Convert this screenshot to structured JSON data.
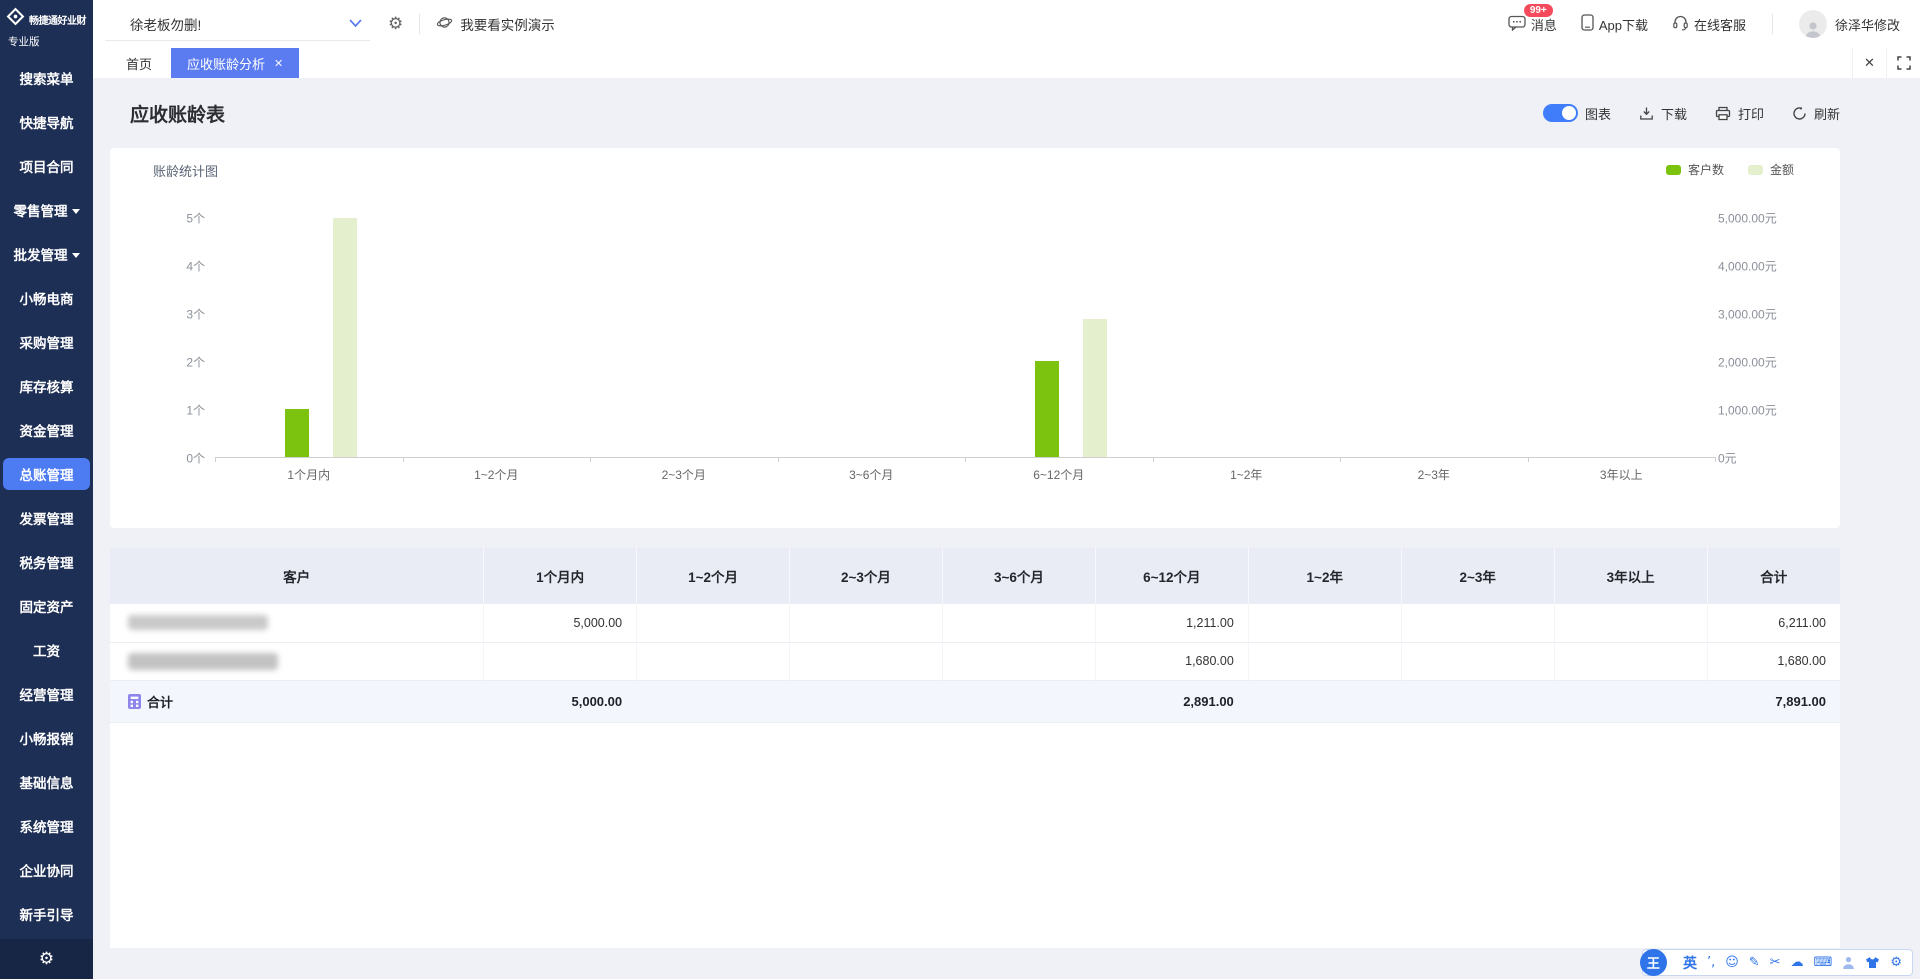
{
  "brand": {
    "logo_icon": "chanjet-emblem-icon",
    "name": "畅捷通好业财",
    "edition": "专业版"
  },
  "sidebar": {
    "items": [
      {
        "label": "搜索菜单"
      },
      {
        "label": "快捷导航"
      },
      {
        "label": "项目合同"
      },
      {
        "label": "零售管理",
        "caret": true
      },
      {
        "label": "批发管理",
        "caret": true
      },
      {
        "label": "小畅电商"
      },
      {
        "label": "采购管理"
      },
      {
        "label": "库存核算"
      },
      {
        "label": "资金管理"
      },
      {
        "label": "总账管理",
        "active": true
      },
      {
        "label": "发票管理"
      },
      {
        "label": "税务管理"
      },
      {
        "label": "固定资产"
      },
      {
        "label": "工资"
      },
      {
        "label": "经营管理"
      },
      {
        "label": "小畅报销"
      },
      {
        "label": "基础信息"
      },
      {
        "label": "系统管理"
      },
      {
        "label": "企业协同"
      },
      {
        "label": "新手引导"
      }
    ],
    "footer_icon": "gear-icon"
  },
  "topbar": {
    "company_selector": {
      "value": "徐老板勿删!",
      "chevron_icon": "chevron-down-icon"
    },
    "settings_icon": "gear-icon",
    "demo_link": {
      "icon": "planet-icon",
      "label": "我要看实例演示"
    },
    "messages": {
      "icon": "chat-bubble-icon",
      "label": "消息",
      "badge": "99+"
    },
    "app_download": {
      "icon": "phone-icon",
      "label": "App下载"
    },
    "support": {
      "icon": "headset-icon",
      "label": "在线客服"
    },
    "user": {
      "avatar_icon": "person-icon",
      "name": "徐泽华修改"
    }
  },
  "tabs": [
    {
      "label": "首页",
      "active": false
    },
    {
      "label": "应收账龄分析",
      "active": true,
      "closable": true
    }
  ],
  "page": {
    "title": "应收账龄表",
    "toolbar": {
      "chart_toggle_label": "图表",
      "toggle_on": true,
      "download_label": "下载",
      "print_label": "打印",
      "refresh_label": "刷新"
    }
  },
  "chart_data": {
    "type": "bar",
    "title": "账龄统计图",
    "categories": [
      "1个月内",
      "1~2个月",
      "2~3个月",
      "3~6个月",
      "6~12个月",
      "1~2年",
      "2~3年",
      "3年以上"
    ],
    "series": [
      {
        "name": "客户数",
        "axis": "left",
        "color": "#7bc30e",
        "values": [
          1,
          0,
          0,
          0,
          2,
          0,
          0,
          0
        ]
      },
      {
        "name": "金额",
        "axis": "right",
        "color": "#e4f0cd",
        "values": [
          5000,
          0,
          0,
          0,
          2891,
          0,
          0,
          0
        ]
      }
    ],
    "left_axis": {
      "unit": "个",
      "max": 5,
      "ticks": [
        "5个",
        "4个",
        "3个",
        "2个",
        "1个",
        "0个"
      ]
    },
    "right_axis": {
      "unit": "元",
      "max": 5000,
      "ticks": [
        "5,000.00元",
        "4,000.00元",
        "3,000.00元",
        "2,000.00元",
        "1,000.00元",
        "0元"
      ]
    },
    "legend_position": "top-right",
    "grid": false
  },
  "table": {
    "headers": [
      "客户",
      "1个月内",
      "1~2个月",
      "2~3个月",
      "3~6个月",
      "6~12个月",
      "1~2年",
      "2~3年",
      "3年以上",
      "合计"
    ],
    "rows": [
      {
        "customer_redacted": true,
        "values": [
          "5,000.00",
          "",
          "",
          "",
          "1,211.00",
          "",
          "",
          "",
          "6,211.00"
        ]
      },
      {
        "customer_redacted": true,
        "values": [
          "",
          "",
          "",
          "",
          "1,680.00",
          "",
          "",
          "",
          "1,680.00"
        ]
      }
    ],
    "total": {
      "icon": "calculator-icon",
      "label": "合计",
      "values": [
        "5,000.00",
        "",
        "",
        "",
        "2,891.00",
        "",
        "",
        "",
        "7,891.00"
      ]
    }
  },
  "ime": {
    "logo_char": "王",
    "icons": [
      {
        "name": "lang-indicator",
        "glyph": "英"
      },
      {
        "name": "punctuation-icon",
        "glyph": "’,"
      },
      {
        "name": "smiley-icon",
        "glyph": "☺"
      },
      {
        "name": "pencil-icon",
        "glyph": "✎"
      },
      {
        "name": "scissors-icon",
        "glyph": "✂"
      },
      {
        "name": "cloud-icon",
        "glyph": "☁"
      },
      {
        "name": "keyboard-icon",
        "glyph": "⌨"
      },
      {
        "name": "person-icon",
        "glyph": ""
      },
      {
        "name": "shirt-icon",
        "glyph": ""
      },
      {
        "name": "gear-icon",
        "glyph": "⚙"
      }
    ]
  },
  "colors": {
    "sidebar_bg": "#1e2f55",
    "active_item": "#4c7bf2",
    "active_tab": "#5b7bf0",
    "toggle_on": "#3f7dfa",
    "series_customers": "#7bc30e",
    "series_amount": "#e4f0cd",
    "table_header_bg": "#e9ebf5",
    "total_row_bg": "#f3f7fd",
    "badge_red": "#f5495c",
    "ime_blue": "#2f74e8"
  }
}
